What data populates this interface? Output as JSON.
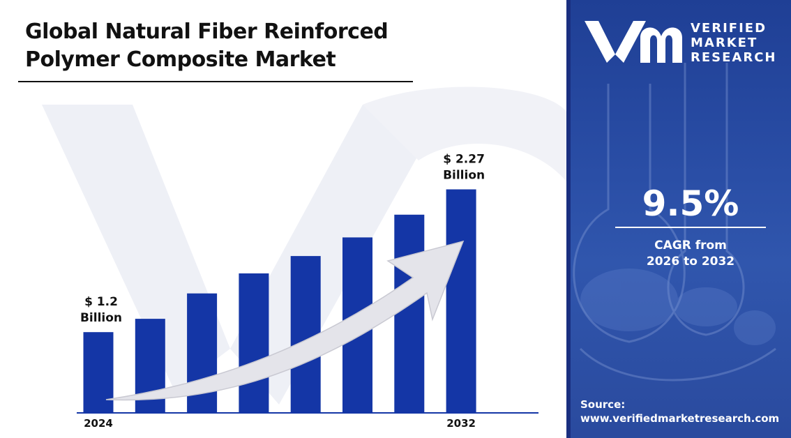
{
  "title": "Global Natural Fiber Reinforced Polymer Composite Market",
  "brand": {
    "line1": "VERIFIED",
    "line2": "MARKET",
    "line3": "RESEARCH"
  },
  "cagr": {
    "value": "9.5%",
    "label_line1": "CAGR from",
    "label_line2": "2026 to 2032"
  },
  "source": {
    "label": "Source:",
    "url": "www.verifiedmarketresearch.com"
  },
  "colors": {
    "bar": "#1436a6",
    "panel": "#2a4ea6",
    "arrow": "#e6e6ec"
  },
  "chart_data": {
    "type": "bar",
    "categories": [
      "2024",
      "",
      "",
      "",
      "",
      "",
      "",
      "2032"
    ],
    "values": [
      1.2,
      1.3,
      1.49,
      1.64,
      1.77,
      1.91,
      2.08,
      2.27
    ],
    "ylim": [
      0.6,
      2.33
    ],
    "data_labels": [
      {
        "index": 0,
        "line1": "$ 1.2",
        "line2": "Billion"
      },
      {
        "index": 7,
        "line1": "$ 2.27",
        "line2": "Billion"
      }
    ],
    "trend_arrow": true,
    "grid": false,
    "legend": "none"
  }
}
